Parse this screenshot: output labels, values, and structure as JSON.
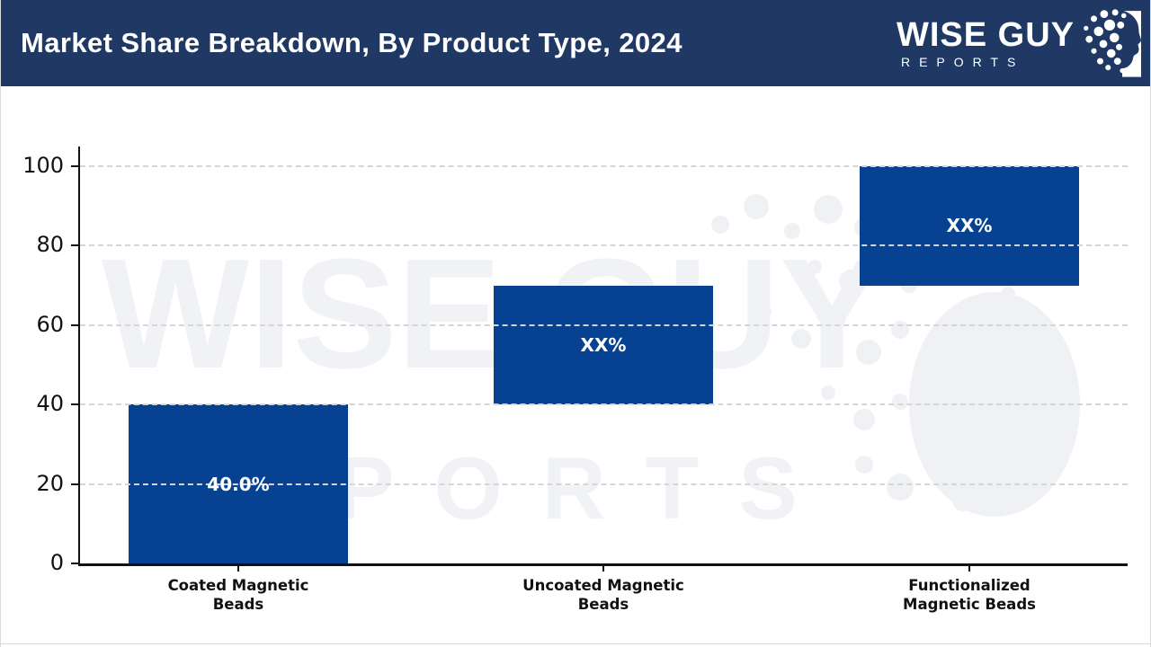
{
  "header": {
    "title": "Market Share Breakdown, By Product Type, 2024",
    "logo": {
      "line1": "WISE GUY",
      "line2": "REPORTS"
    }
  },
  "watermark": {
    "line1": "WISE GUY",
    "line2": "REPORTS"
  },
  "chart_data": {
    "type": "bar",
    "subtype": "stacked-breakdown-waterfall",
    "title": "Market Share Breakdown, By Product Type, 2024",
    "categories": [
      "Coated Magnetic\nBeads",
      "Uncoated Magnetic\nBeads",
      "Functionalized\nMagnetic Beads"
    ],
    "bars": [
      {
        "category": "Coated Magnetic Beads",
        "start": 0,
        "end": 40,
        "label": "40.0%"
      },
      {
        "category": "Uncoated Magnetic Beads",
        "start": 40,
        "end": 70,
        "label": "XX%"
      },
      {
        "category": "Functionalized Magnetic Beads",
        "start": 70,
        "end": 100,
        "label": "XX%"
      }
    ],
    "y_ticks": [
      0,
      20,
      40,
      60,
      80,
      100
    ],
    "ylim": [
      0,
      105
    ],
    "xlabel": "",
    "ylabel": "",
    "grid": "horizontal-dashed",
    "legend": "none",
    "bar_color": "#064291",
    "value_label_color": "#ffffff"
  },
  "colors": {
    "header_bg": "#1f3964",
    "bar": "#064291",
    "gridline": "#d6d6d6",
    "axis": "#111111",
    "watermark": "#f1f2f5",
    "background": "#ffffff"
  }
}
